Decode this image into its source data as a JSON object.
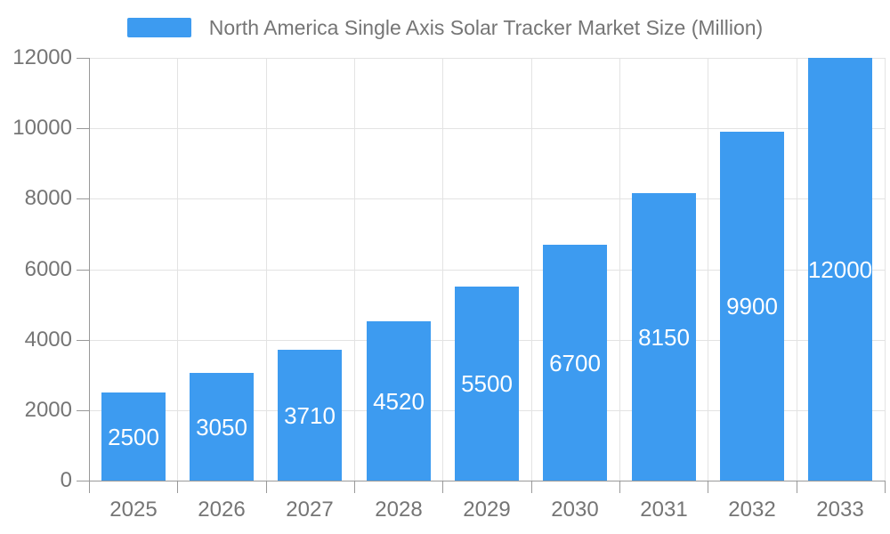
{
  "chart_data": {
    "type": "bar",
    "title": "North America Single Axis Solar Tracker Market Size (Million)",
    "legend": {
      "position": "top",
      "entries": [
        "North America Single Axis Solar Tracker Market Size (Million)"
      ]
    },
    "categories": [
      "2025",
      "2026",
      "2027",
      "2028",
      "2029",
      "2030",
      "2031",
      "2032",
      "2033"
    ],
    "values": [
      2500,
      3050,
      3710,
      4520,
      5500,
      6700,
      8150,
      9900,
      12000
    ],
    "value_labels": [
      "2500",
      "3050",
      "3710",
      "4520",
      "5500",
      "6700",
      "8150",
      "9900",
      "12000"
    ],
    "value_label_position": "inside-center",
    "xlabel": "",
    "ylabel": "",
    "ylim": [
      0,
      12000
    ],
    "yticks": [
      0,
      2000,
      4000,
      6000,
      8000,
      10000,
      12000
    ],
    "ytick_labels": [
      "0",
      "2000",
      "4000",
      "6000",
      "8000",
      "10000",
      "12000"
    ],
    "grid": "horizontal and vertical, light gray",
    "colors": {
      "bar": "#3d9bf0",
      "grid": "#e3e3e3",
      "axis": "#999999",
      "axis_label": "#757575",
      "title": "#757575",
      "value_label": "#ffffff",
      "background": "#ffffff"
    }
  }
}
